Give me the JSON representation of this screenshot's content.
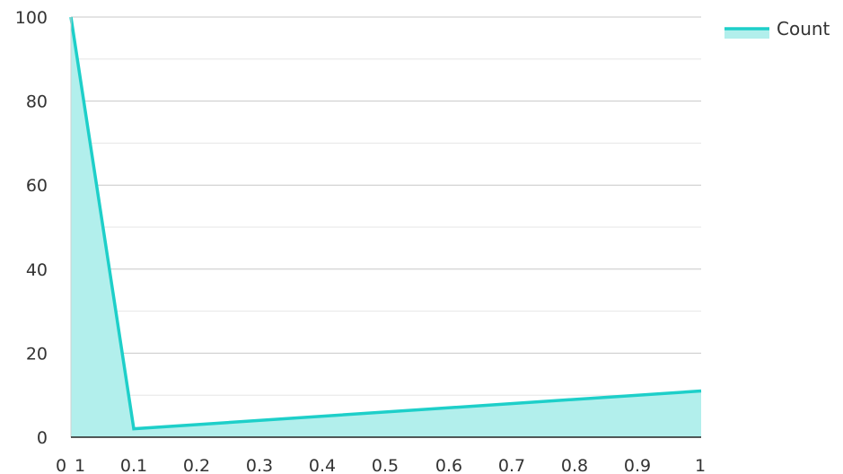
{
  "chart_data": {
    "type": "area",
    "title": "",
    "xlabel": "",
    "ylabel": "",
    "x_tick_labels": [
      "0",
      "1",
      "0.1",
      "0.2",
      "0.3",
      "0.4",
      "0.5",
      "0.6",
      "0.7",
      "0.8",
      "0.9",
      "1"
    ],
    "y_ticks": [
      0,
      20,
      40,
      60,
      80,
      100
    ],
    "ylim": [
      0,
      100
    ],
    "grid": true,
    "legend_position": "top-right",
    "series": [
      {
        "name": "Count",
        "color": "#1ecfc9",
        "fill_color": "#b2efec",
        "points": [
          {
            "x": "1",
            "y": 100
          },
          {
            "x": "0.1",
            "y": 2
          },
          {
            "x": "1",
            "y": 11
          }
        ]
      }
    ]
  }
}
